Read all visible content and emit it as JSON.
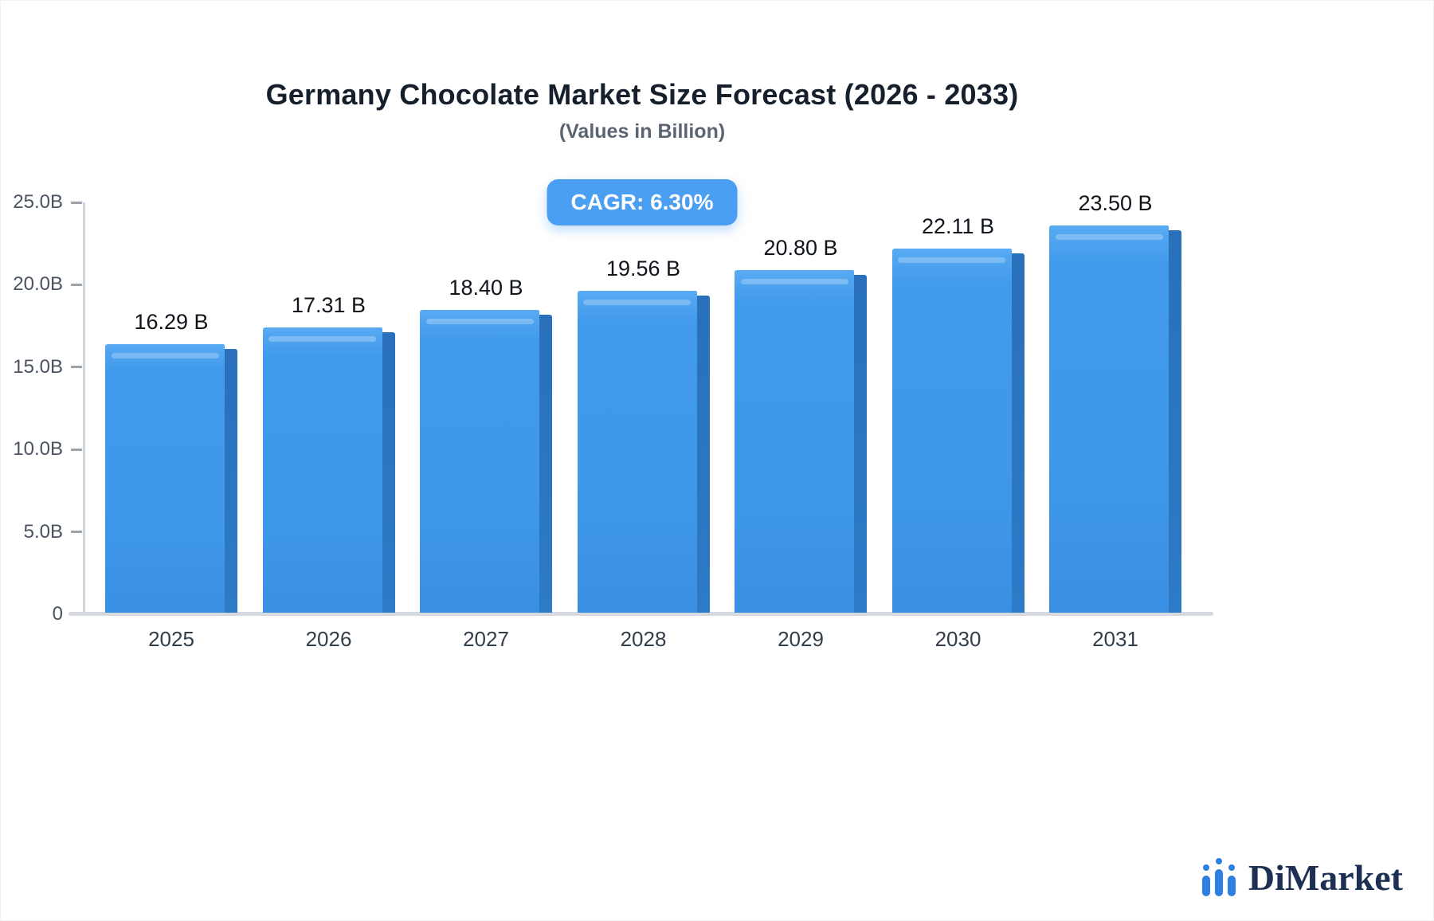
{
  "chart_data": {
    "type": "bar",
    "title": "Germany Chocolate Market Size Forecast (2026 - 2033)",
    "subtitle": "(Values in Billion)",
    "badge_label": "CAGR: 6.30%",
    "categories": [
      "2025",
      "2026",
      "2027",
      "2028",
      "2029",
      "2030",
      "2031"
    ],
    "values": [
      16.29,
      17.31,
      18.4,
      19.56,
      20.8,
      22.11,
      23.5
    ],
    "value_labels": [
      "16.29 B",
      "17.31 B",
      "18.40 B",
      "19.56 B",
      "20.80 B",
      "22.11 B",
      "23.50 B"
    ],
    "y_ticks": [
      {
        "label": "25.0B",
        "value": 25
      },
      {
        "label": "20.0B",
        "value": 20
      },
      {
        "label": "15.0B",
        "value": 15
      },
      {
        "label": "10.0B",
        "value": 10
      },
      {
        "label": "5.0B",
        "value": 5
      },
      {
        "label": "0",
        "value": 0
      }
    ],
    "ylim": [
      0,
      25
    ],
    "xlabel": "",
    "ylabel": "",
    "grid": false,
    "legend": "none",
    "bar_color": "#3f97ea",
    "bar_side_color": "#2d7ac6",
    "bar_highlight_color": "#58aaf2",
    "badge_color": "#4b9ff3"
  },
  "branding": {
    "logo_text": "DiMarket",
    "logo_icon": "bar-chart-icon",
    "logo_text_color": "#1d3054",
    "logo_icon_color": "#2e7fe2"
  }
}
